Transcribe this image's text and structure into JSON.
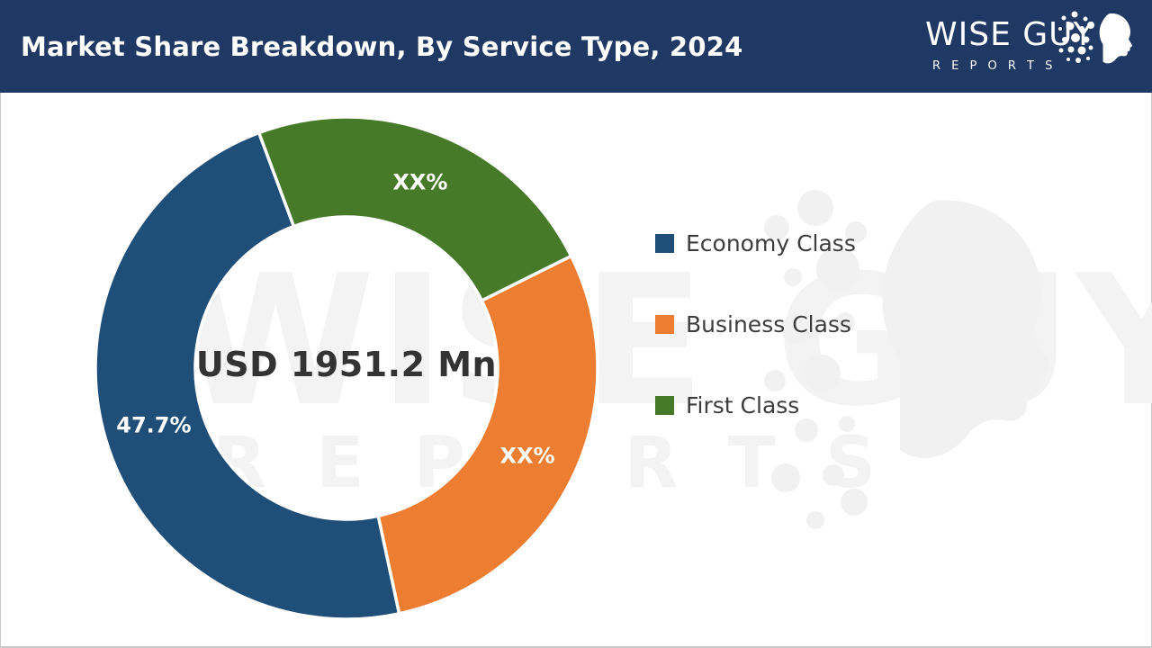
{
  "header": {
    "title": "Market Share Breakdown, By Service Type, 2024",
    "bg_color": "#1F3864",
    "logo": {
      "line1": "WISE GUY",
      "line2": "R E P O R T S"
    }
  },
  "watermark": {
    "line1": "WISE GUY",
    "line2": "R E P O R T S"
  },
  "chart_data": {
    "type": "pie",
    "subtype": "donut",
    "title": "Market Share Breakdown, By Service Type, 2024",
    "center_label": "USD 1951.2 Mn",
    "legend_position": "right",
    "direction": "counterclockwise",
    "start_angle_deg": 110.4,
    "outer_radius_px": 279,
    "inner_radius_px": 168,
    "segments": [
      {
        "label": "Economy Class",
        "value_pct": 47.7,
        "display_pct": "47.7%",
        "color": "#1F4E79"
      },
      {
        "label": "Business Class",
        "value_pct": 29.0,
        "display_pct": "XX%",
        "color": "#ED7D31"
      },
      {
        "label": "First Class",
        "value_pct": 23.3,
        "display_pct": "XX%",
        "color": "#467A28"
      }
    ]
  }
}
